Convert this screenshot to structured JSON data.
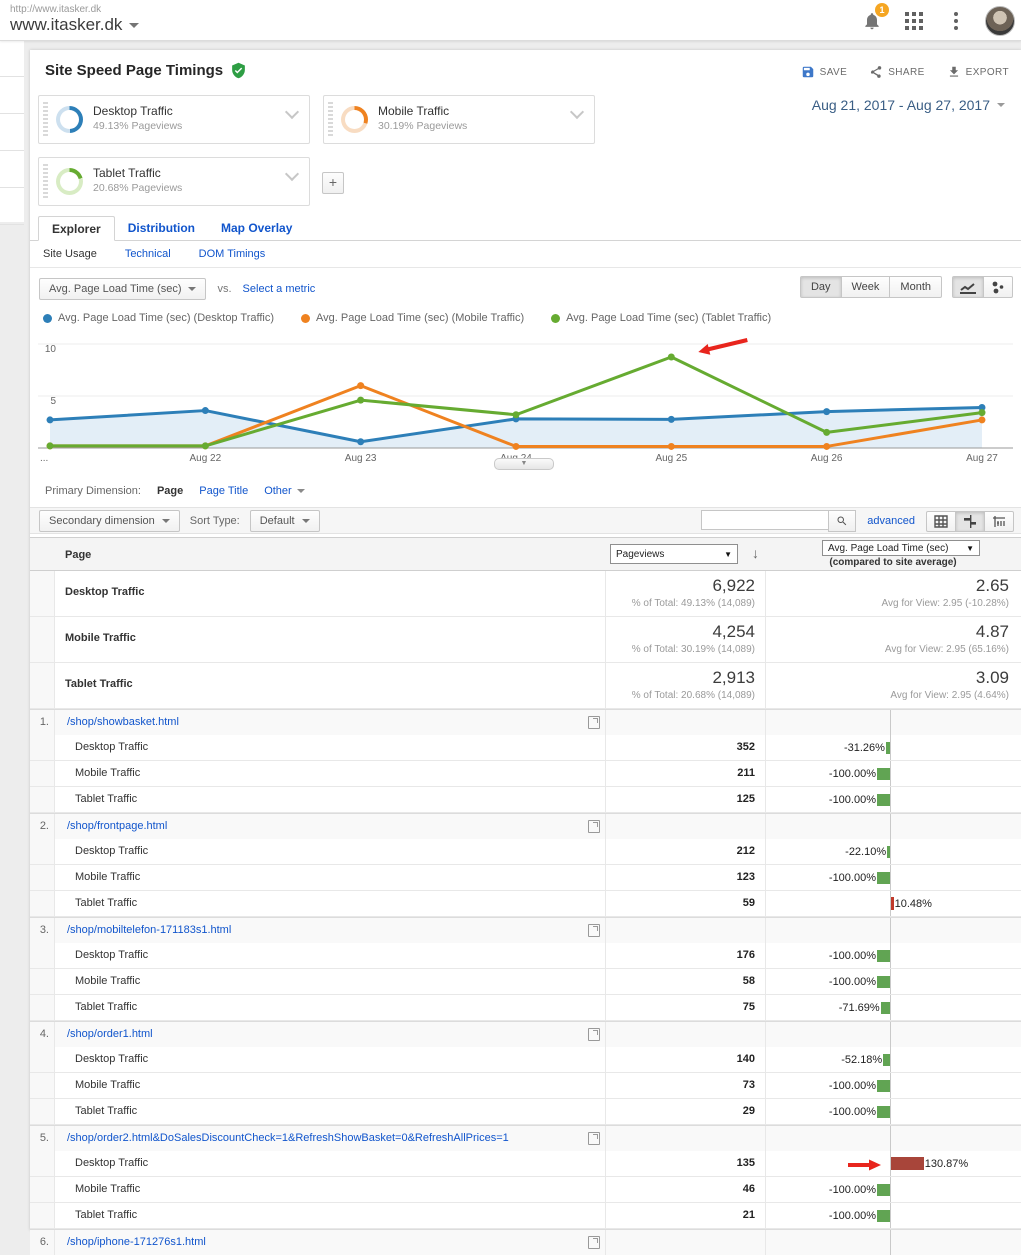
{
  "topbar": {
    "url_small": "http://www.itasker.dk",
    "site_name": "www.itasker.dk",
    "notifications_badge": "1"
  },
  "header": {
    "title": "Site Speed Page Timings",
    "save_label": "SAVE",
    "share_label": "SHARE",
    "export_label": "EXPORT",
    "date_range": "Aug 21, 2017 - Aug 27, 2017"
  },
  "segments": [
    {
      "name": "Desktop Traffic",
      "sub": "49.13% Pageviews",
      "pct": 49.13,
      "color": "#2d7fb8",
      "light": "#cde0ef"
    },
    {
      "name": "Mobile Traffic",
      "sub": "30.19% Pageviews",
      "pct": 30.19,
      "color": "#ef8220",
      "light": "#f8dcc2"
    },
    {
      "name": "Tablet Traffic",
      "sub": "20.68% Pageviews",
      "pct": 20.68,
      "color": "#66ab31",
      "light": "#d8ecc4"
    }
  ],
  "plus_button": "+",
  "tabs": {
    "main": [
      "Explorer",
      "Distribution",
      "Map Overlay"
    ],
    "active": "Explorer",
    "sub": [
      "Site Usage",
      "Technical",
      "DOM Timings"
    ],
    "active_sub": "Site Usage"
  },
  "controls": {
    "metric_dropdown": "Avg. Page Load Time (sec)",
    "vs_label": "vs.",
    "select_metric": "Select a metric",
    "granularity": [
      "Day",
      "Week",
      "Month"
    ],
    "active_granularity": "Day"
  },
  "chart_data": {
    "type": "line",
    "x": [
      "Aug 21",
      "Aug 22",
      "Aug 23",
      "Aug 24",
      "Aug 25",
      "Aug 26",
      "Aug 27"
    ],
    "x_tick_labels": [
      "...",
      "Aug 22",
      "Aug 23",
      "Aug 24",
      "Aug 25",
      "Aug 26",
      "Aug 27"
    ],
    "ylim": [
      0,
      10
    ],
    "yticks": [
      5,
      10
    ],
    "grid": true,
    "legend_position": "top",
    "series": [
      {
        "name": "Avg. Page Load Time (sec) (Desktop Traffic)",
        "color": "#2d7fb8",
        "area": true,
        "area_fill": "#e3eef7",
        "values": [
          2.7,
          3.6,
          0.6,
          2.8,
          2.75,
          3.5,
          3.9
        ]
      },
      {
        "name": "Avg. Page Load Time (sec) (Mobile Traffic)",
        "color": "#ef8220",
        "area": false,
        "values": [
          0.2,
          0.2,
          6.0,
          0.15,
          0.15,
          0.15,
          2.7
        ]
      },
      {
        "name": "Avg. Page Load Time (sec) (Tablet Traffic)",
        "color": "#66ab31",
        "area": false,
        "values": [
          0.2,
          0.2,
          4.6,
          3.2,
          8.75,
          1.5,
          3.4
        ]
      }
    ],
    "annotation": {
      "type": "arrow",
      "color": "#e8251d",
      "target_series": 2,
      "target_x": "Aug 25"
    }
  },
  "primary_dimension": {
    "label": "Primary Dimension:",
    "active": "Page",
    "options": [
      "Page",
      "Page Title",
      "Other"
    ]
  },
  "table_toolbar": {
    "secondary_dimension": "Secondary dimension",
    "sort_type_label": "Sort Type:",
    "sort_type_value": "Default",
    "search_value": "",
    "advanced_label": "advanced"
  },
  "table": {
    "columns": {
      "page": "Page",
      "pageviews": "Pageviews",
      "metric": "Avg. Page Load Time (sec)",
      "metric_note": "(compared to site average)",
      "sort_icon": "↓"
    },
    "summary": [
      {
        "name": "Desktop Traffic",
        "pageviews": "6,922",
        "pv_note": "% of Total: 49.13% (14,089)",
        "metric": "2.65",
        "metric_note": "Avg for View: 2.95 (-10.28%)"
      },
      {
        "name": "Mobile Traffic",
        "pageviews": "4,254",
        "pv_note": "% of Total: 30.19% (14,089)",
        "metric": "4.87",
        "metric_note": "Avg for View: 2.95 (65.16%)"
      },
      {
        "name": "Tablet Traffic",
        "pageviews": "2,913",
        "pv_note": "% of Total: 20.68% (14,089)",
        "metric": "3.09",
        "metric_note": "Avg for View: 2.95 (4.64%)"
      }
    ],
    "bar_colors": {
      "negative": "#61a453",
      "positive_large": "#a8453a",
      "positive_small": "#c03a2b",
      "arrow": "#e8251d"
    },
    "rows": [
      {
        "index": "1.",
        "url": "/shop/showbasket.html",
        "segments": [
          {
            "name": "Desktop Traffic",
            "pageviews": "352",
            "delta": "-31.26%",
            "value": -31.26
          },
          {
            "name": "Mobile Traffic",
            "pageviews": "211",
            "delta": "-100.00%",
            "value": -100
          },
          {
            "name": "Tablet Traffic",
            "pageviews": "125",
            "delta": "-100.00%",
            "value": -100
          }
        ]
      },
      {
        "index": "2.",
        "url": "/shop/frontpage.html",
        "segments": [
          {
            "name": "Desktop Traffic",
            "pageviews": "212",
            "delta": "-22.10%",
            "value": -22.1
          },
          {
            "name": "Mobile Traffic",
            "pageviews": "123",
            "delta": "-100.00%",
            "value": -100
          },
          {
            "name": "Tablet Traffic",
            "pageviews": "59",
            "delta": "10.48%",
            "value": 10.48
          }
        ]
      },
      {
        "index": "3.",
        "url": "/shop/mobiltelefon-171183s1.html",
        "segments": [
          {
            "name": "Desktop Traffic",
            "pageviews": "176",
            "delta": "-100.00%",
            "value": -100
          },
          {
            "name": "Mobile Traffic",
            "pageviews": "58",
            "delta": "-100.00%",
            "value": -100
          },
          {
            "name": "Tablet Traffic",
            "pageviews": "75",
            "delta": "-71.69%",
            "value": -71.69
          }
        ]
      },
      {
        "index": "4.",
        "url": "/shop/order1.html",
        "segments": [
          {
            "name": "Desktop Traffic",
            "pageviews": "140",
            "delta": "-52.18%",
            "value": -52.18
          },
          {
            "name": "Mobile Traffic",
            "pageviews": "73",
            "delta": "-100.00%",
            "value": -100
          },
          {
            "name": "Tablet Traffic",
            "pageviews": "29",
            "delta": "-100.00%",
            "value": -100
          }
        ]
      },
      {
        "index": "5.",
        "url": "/shop/order2.html&DoSalesDiscountCheck=1&RefreshShowBasket=0&RefreshAllPrices=1",
        "segments": [
          {
            "name": "Desktop Traffic",
            "pageviews": "135",
            "delta": "130.87%",
            "value": 130.87,
            "arrow": true
          },
          {
            "name": "Mobile Traffic",
            "pageviews": "46",
            "delta": "-100.00%",
            "value": -100
          },
          {
            "name": "Tablet Traffic",
            "pageviews": "21",
            "delta": "-100.00%",
            "value": -100
          }
        ]
      },
      {
        "index": "6.",
        "url": "/shop/iphone-171276s1.html",
        "segments": []
      }
    ]
  },
  "icons": {
    "notifications": "bell-icon",
    "apps": "grid-icon",
    "more": "kebab-icon",
    "verified": "shield-check-icon",
    "save": "floppy-icon",
    "share": "share-icon",
    "export": "download-icon",
    "search": "magnifier-icon",
    "open_in_new": "open-in-new-icon",
    "line_chart_view": "line-chart-icon",
    "motion_chart_view": "motion-chart-icon",
    "table_view": "table-grid-icon",
    "comparison_view": "comparison-icon",
    "pivot_view": "pivot-icon"
  }
}
